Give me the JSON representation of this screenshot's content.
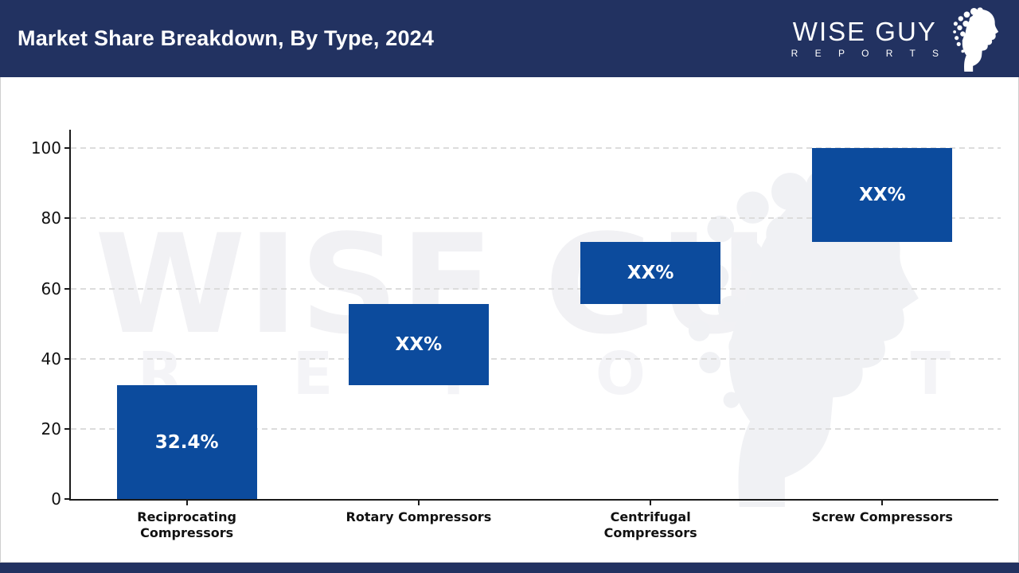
{
  "header": {
    "title": "Market Share Breakdown, By Type, 2024"
  },
  "brand": {
    "name": "WISE GUY",
    "sub": "R E P O R T S"
  },
  "watermark": {
    "line1": "WISE GUY",
    "line2": "R E P O R T S"
  },
  "colors": {
    "header_bg": "#223261",
    "footer_bg": "#223261",
    "bar": "#0c4b9d",
    "axis": "#1a1a1a",
    "grid": "#dcdcdc",
    "bar_label_text": "#ffffff",
    "watermark": "#f0f1f4"
  },
  "chart_data": {
    "type": "bar",
    "subtype": "waterfall",
    "title": "Market Share Breakdown, By Type, 2024",
    "categories": [
      "Reciprocating\nCompressors",
      "Rotary Compressors",
      "Centrifugal\nCompressors",
      "Screw Compressors"
    ],
    "segments": [
      {
        "category": "Reciprocating Compressors",
        "start": 0,
        "end": 32.4,
        "label": "32.4%"
      },
      {
        "category": "Rotary Compressors",
        "start": 32.4,
        "end": 55.5,
        "label": "XX%"
      },
      {
        "category": "Centrifugal Compressors",
        "start": 55.5,
        "end": 73.4,
        "label": "XX%"
      },
      {
        "category": "Screw Compressors",
        "start": 73.4,
        "end": 100,
        "label": "XX%"
      }
    ],
    "bar_labels": [
      "32.4%",
      "XX%",
      "XX%",
      "XX%"
    ],
    "ylim": [
      0,
      100
    ],
    "yticks": [
      0,
      20,
      40,
      60,
      80,
      100
    ],
    "xlabel": "",
    "ylabel": "",
    "grid": "dashed-horizontal",
    "legend": "none",
    "bar_color": "#0c4b9d"
  }
}
